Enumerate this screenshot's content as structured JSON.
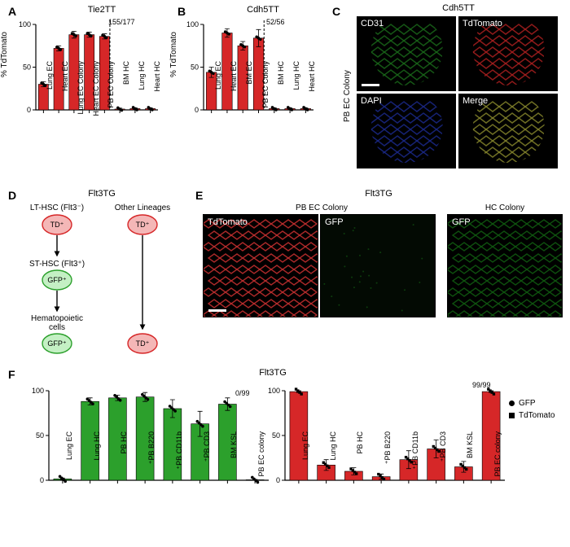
{
  "panelA": {
    "label": "A",
    "title": "Tie2TT",
    "ylabel": "% TdTomato",
    "ylim": [
      0,
      100
    ],
    "ytick_step": 50,
    "categories": [
      "Lung EC",
      "Heart EC",
      "Lung EC Colony",
      "Heart EC Colony",
      "PB EC Colony",
      "BM HC",
      "Lung HC",
      "Heart HC"
    ],
    "values": [
      30,
      72,
      88,
      88,
      86,
      1,
      1.5,
      1.5
    ],
    "errors": [
      3,
      3,
      4,
      3,
      3,
      1,
      1,
      1
    ],
    "bar_color": "#d62728",
    "annotation": "155/177",
    "divider_after_index": 4
  },
  "panelB": {
    "label": "B",
    "title": "Cdh5TT",
    "ylabel": "% TdTomato",
    "ylim": [
      0,
      100
    ],
    "ytick_step": 50,
    "categories": [
      "Lung EC",
      "Heart EC",
      "BM EC",
      "PB EC Colony",
      "BM HC",
      "Lung HC",
      "Heart HC"
    ],
    "values": [
      44,
      90,
      75,
      84,
      1.5,
      1.5,
      1.5
    ],
    "errors": [
      6,
      5,
      5,
      10,
      1,
      1,
      1
    ],
    "bar_color": "#d62728",
    "annotation": "52/56",
    "divider_after_index": 3
  },
  "panelC": {
    "label": "C",
    "title": "Cdh5TT",
    "side_label": "PB EC Colony",
    "tiles": [
      {
        "label": "CD31",
        "bg": "#000000",
        "pattern": "#1a6b1a"
      },
      {
        "label": "TdTomato",
        "bg": "#000000",
        "pattern": "#b02020"
      },
      {
        "label": "DAPI",
        "bg": "#000000",
        "pattern": "#1c2a8e"
      },
      {
        "label": "Merge",
        "bg": "#000000",
        "pattern": "#8a8a2d"
      }
    ]
  },
  "panelD": {
    "label": "D",
    "title": "Flt3TG",
    "left_heading": "LT-HSC (Flt3⁻)",
    "right_heading": "Other Lineages",
    "nodes": [
      {
        "label": "TD⁺",
        "fill": "#f4b7b7",
        "stroke": "#d62728",
        "sub": ""
      },
      {
        "label": "GFP⁺",
        "fill": "#c4f0c4",
        "stroke": "#2ca02c",
        "sub": "ST-HSC (Flt3⁺)"
      },
      {
        "label": "GFP⁺",
        "fill": "#c4f0c4",
        "stroke": "#2ca02c",
        "sub": "Hematopoietic\ncells"
      },
      {
        "label": "TD⁺",
        "fill": "#f4b7b7",
        "stroke": "#d62728",
        "sub": ""
      },
      {
        "label": "TD⁺",
        "fill": "#f4b7b7",
        "stroke": "#d62728",
        "sub": ""
      }
    ]
  },
  "panelE": {
    "label": "E",
    "title": "Flt3TG",
    "left_label": "PB EC Colony",
    "right_label": "HC Colony",
    "tiles": [
      {
        "label": "TdTomato",
        "bg": "#000000",
        "pattern": "#c83030"
      },
      {
        "label": "GFP",
        "bg": "#000000",
        "pattern": "#0a2a0a"
      },
      {
        "label": "GFP",
        "bg": "#000000",
        "pattern": "#115c11"
      }
    ]
  },
  "panelF": {
    "label": "F",
    "title": "Flt3TG",
    "ylim": [
      0,
      100
    ],
    "ytick_step": 50,
    "categories": [
      "Lung EC",
      "Lung HC",
      "PB HC",
      "PB B220⁺",
      "PB CD11b⁺",
      "PB CD3⁺",
      "BM KSL",
      "PB EC colony"
    ],
    "gfp_values": [
      1.5,
      88,
      92,
      93,
      80,
      63,
      85,
      0.5
    ],
    "gfp_err": [
      1,
      4,
      3,
      5,
      10,
      14,
      7,
      0.5
    ],
    "td_values": [
      99,
      17,
      10,
      4,
      23,
      35,
      15,
      99
    ],
    "td_err": [
      1,
      6,
      4,
      3,
      10,
      10,
      6,
      1
    ],
    "gfp_color": "#2ca02c",
    "td_color": "#d62728",
    "ann_left": "0/99",
    "ann_right": "99/99",
    "legend": [
      {
        "marker": "circle",
        "label": "GFP"
      },
      {
        "marker": "square",
        "label": "TdTomato"
      }
    ]
  }
}
